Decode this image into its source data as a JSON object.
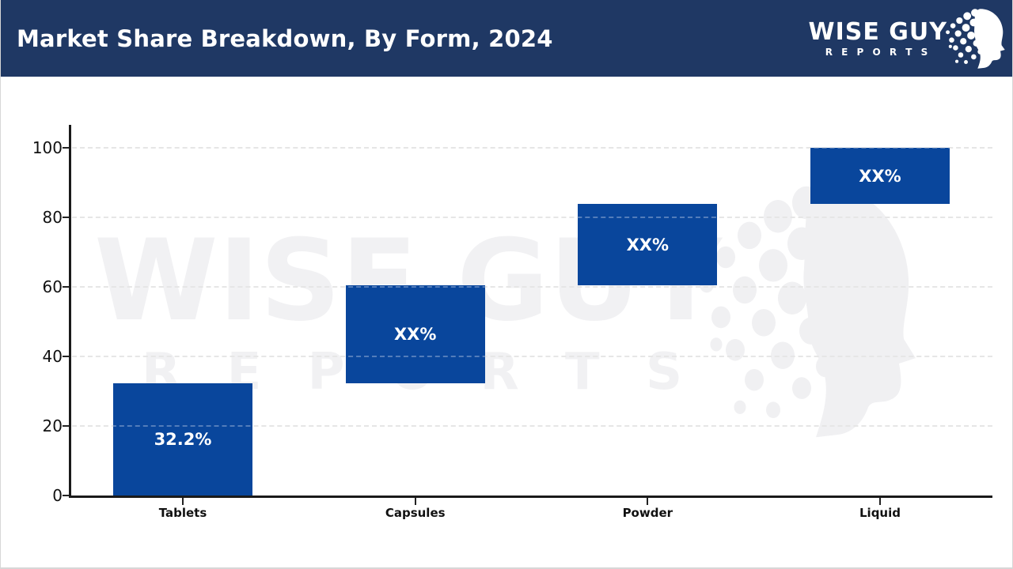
{
  "header": {
    "title": "Market Share Breakdown, By Form, 2024",
    "background_color": "#1f3864",
    "logo": {
      "line1": "WISE GUY",
      "line2": "R E P O R T S"
    }
  },
  "watermark": {
    "line1": "WISE GUY",
    "line2": "R E P O R T S"
  },
  "chart_data": {
    "type": "bar",
    "subtype": "waterfall",
    "title": "Market Share Breakdown, By Form, 2024",
    "categories": [
      "Tablets",
      "Capsules",
      "Powder",
      "Liquid"
    ],
    "series": [
      {
        "name": "Market share (%)",
        "segments": [
          {
            "category": "Tablets",
            "start": 0,
            "end": 32.2,
            "label": "32.2%"
          },
          {
            "category": "Capsules",
            "start": 32.2,
            "end": 60.5,
            "label": "XX%"
          },
          {
            "category": "Powder",
            "start": 60.5,
            "end": 83.8,
            "label": "XX%"
          },
          {
            "category": "Liquid",
            "start": 83.8,
            "end": 100,
            "label": "XX%"
          }
        ]
      }
    ],
    "ylim": [
      0,
      100
    ],
    "yticks": [
      0,
      20,
      40,
      60,
      80,
      100
    ],
    "xlabel": "",
    "ylabel": "",
    "grid": "horizontal-dashed",
    "legend": "none",
    "colors": {
      "bar": "#09469c",
      "bar_label": "#ffffff",
      "gridline": "#dcdcdc",
      "axis": "#1a1a1a",
      "header_bg": "#1f3864"
    }
  }
}
